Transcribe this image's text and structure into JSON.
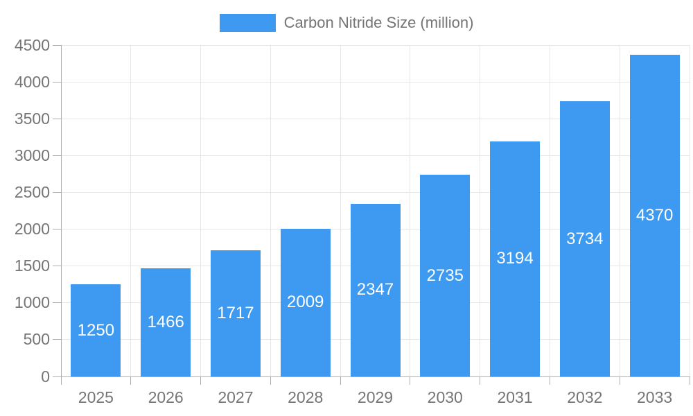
{
  "chart_data": {
    "type": "bar",
    "title": "",
    "categories": [
      "2025",
      "2026",
      "2027",
      "2028",
      "2029",
      "2030",
      "2031",
      "2032",
      "2033"
    ],
    "series": [
      {
        "name": "Carbon Nitride Size (million)",
        "values": [
          1250,
          1466,
          1717,
          2009,
          2347,
          2735,
          3194,
          3734,
          4370
        ],
        "color": "#3D9AF0"
      }
    ],
    "xlabel": "",
    "ylabel": "",
    "ylim": [
      0,
      4500
    ],
    "ytick_step": 500,
    "grid": true,
    "legend_position": "top-center",
    "value_labels_position": "inside-center",
    "value_label_color": "#FFFFFF",
    "axis_text_color": "#757575",
    "grid_color": "#E6E6E6",
    "axis_line_color": "#ADADAD"
  }
}
